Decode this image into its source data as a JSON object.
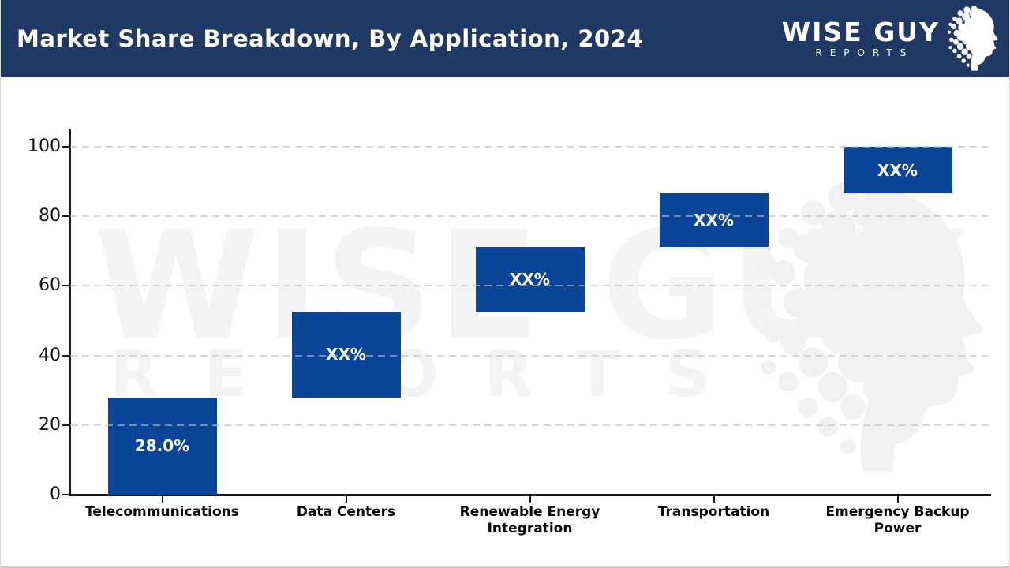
{
  "header": {
    "title": "Market Share Breakdown, By Application, 2024",
    "bg_color": "#1f3864",
    "logo": {
      "line1": "WISE GUY",
      "line2": "REPORTS"
    }
  },
  "watermark": {
    "line1": "WISE GUY",
    "line2": "REPORTS"
  },
  "chart_data": {
    "type": "bar",
    "subtype": "waterfall",
    "title": "Market Share Breakdown, By Application, 2024",
    "categories": [
      "Telecommunications",
      "Data Centers",
      "Renewable Energy Integration",
      "Transportation",
      "Emergency Backup Power"
    ],
    "segments": [
      {
        "category": "Telecommunications",
        "start": 0,
        "end": 28,
        "label": "28.0%"
      },
      {
        "category": "Data Centers",
        "start": 28,
        "end": 52.6,
        "label": "XX%"
      },
      {
        "category": "Renewable Energy Integration",
        "start": 52.6,
        "end": 71.2,
        "label": "XX%"
      },
      {
        "category": "Transportation",
        "start": 71.2,
        "end": 86.6,
        "label": "XX%"
      },
      {
        "category": "Emergency Backup Power",
        "start": 86.6,
        "end": 100,
        "label": "XX%"
      }
    ],
    "xlabel": "",
    "ylabel": "",
    "ylim": [
      0,
      105
    ],
    "yticks": [
      0,
      20,
      40,
      60,
      80,
      100
    ],
    "grid": "horizontal-dashed",
    "legend": "none",
    "bar_color": "#0a4599",
    "bar_label_color": "#ffffff"
  }
}
